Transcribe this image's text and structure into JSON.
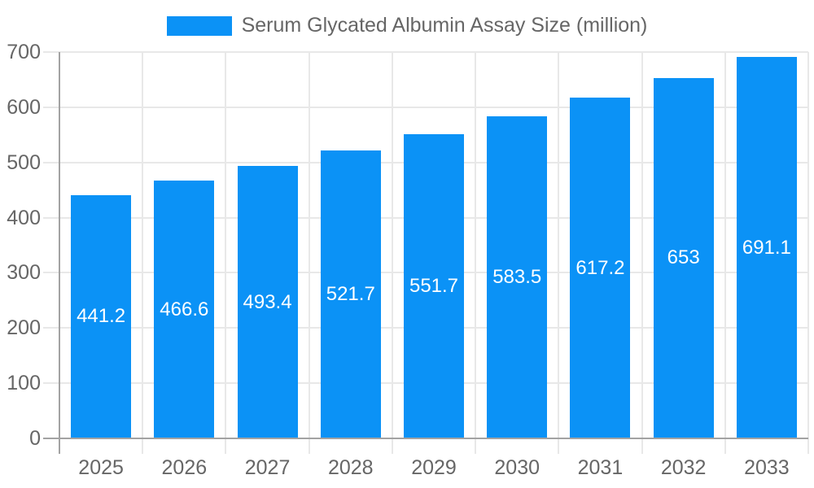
{
  "chart_data": {
    "type": "bar",
    "title": "Serum Glycated Albumin Assay Size (million)",
    "legend": {
      "label": "Serum Glycated Albumin Assay Size (million)",
      "position": "top"
    },
    "categories": [
      "2025",
      "2026",
      "2027",
      "2028",
      "2029",
      "2030",
      "2031",
      "2032",
      "2033"
    ],
    "series": [
      {
        "name": "Serum Glycated Albumin Assay Size (million)",
        "values": [
          441.2,
          466.6,
          493.4,
          521.7,
          551.7,
          583.5,
          617.2,
          653,
          691.1
        ]
      }
    ],
    "xlabel": "",
    "ylabel": "",
    "ylim": [
      0,
      700
    ],
    "yticks": [
      0,
      100,
      200,
      300,
      400,
      500,
      600,
      700
    ],
    "grid": true,
    "value_labels_inside_bars": true,
    "colors": {
      "bar": "#0b92f6",
      "grid_line": "#e8e8e8",
      "axis_line": "#a3a3a3",
      "tick_text": "#666666",
      "value_label_text": "#ffffff",
      "background": "#ffffff"
    }
  }
}
